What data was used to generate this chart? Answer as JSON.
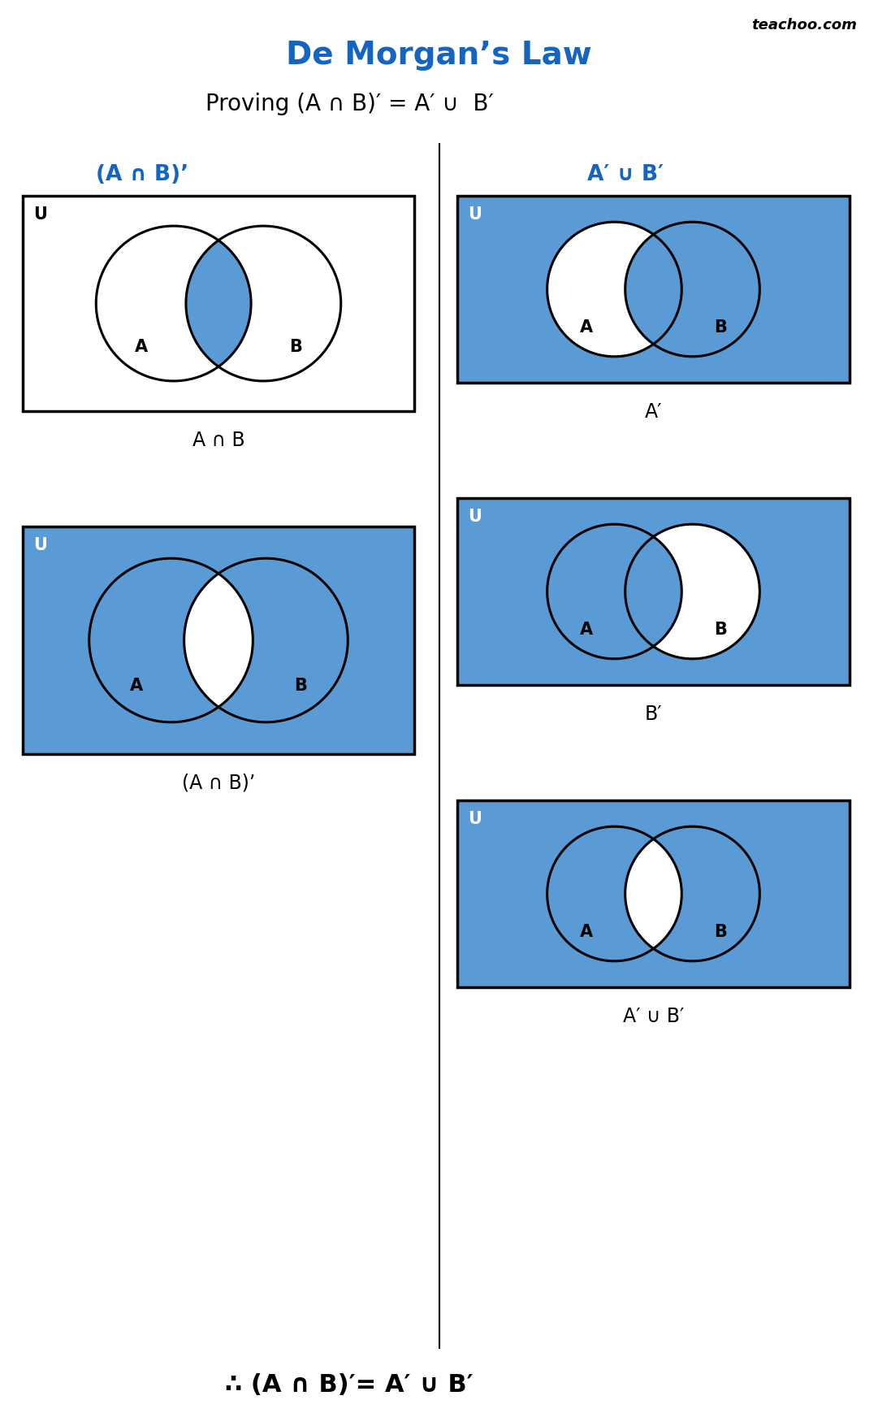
{
  "title": "De Morgan’s Law",
  "subtitle": "Proving (A ∩ B)′ = A′ ∪  B′",
  "watermark": "teachoo.com",
  "blue_fill": "#5B9BD5",
  "blue_dark": "#2E75B6",
  "blue_circle": "#4A8BBF",
  "blue_text": "#1565C0",
  "conclusion": "∴ (A ∩ B)′= A′ ∪ B′",
  "col_header_left": "(A ∩ B)’",
  "col_header_right": "A′ ∪ B′",
  "diag1_label": "A ∩ B",
  "diag2_label": "(A ∩ B)’",
  "diag3_label": "A′",
  "diag4_label": "B′",
  "diag5_label": "A′ ∪ B′"
}
